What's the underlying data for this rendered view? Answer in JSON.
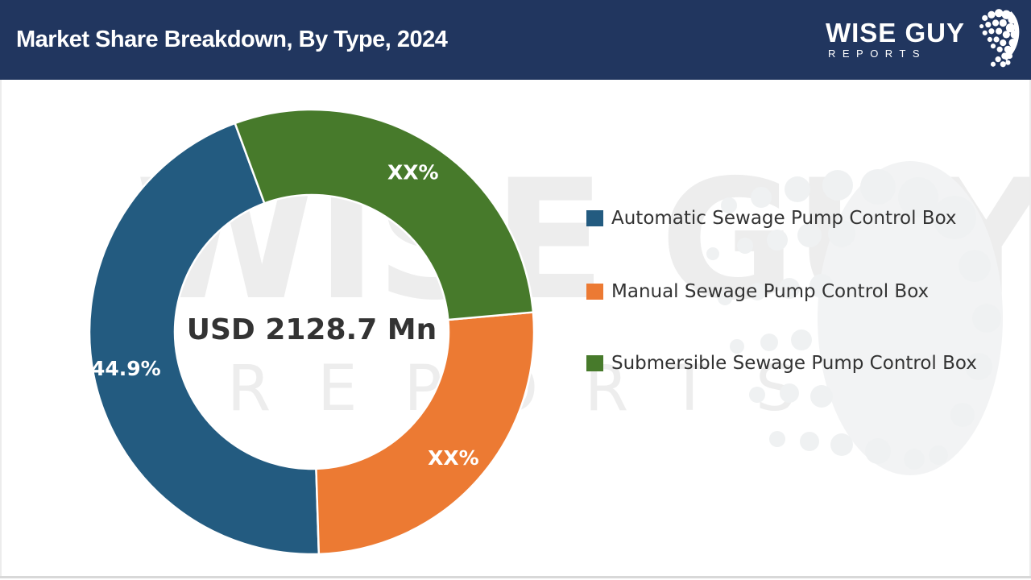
{
  "header": {
    "title": "Market Share Breakdown, By Type, 2024",
    "bg_color": "#21365f",
    "logo_line1": "WISE GUY",
    "logo_line2": "REPORTS"
  },
  "watermark": {
    "line1": "WISE GUY",
    "line2": "REPORTS"
  },
  "chart_data": {
    "type": "pie",
    "style": "donut",
    "center_label": "USD 2128.7 Mn",
    "start_angle_deg": 110.2,
    "direction": "counterclockwise",
    "legend_position": "right",
    "series": [
      {
        "name": "Automatic Sewage Pump Control Box",
        "value": 44.9,
        "display_label": "44.9%",
        "color": "#235b80"
      },
      {
        "name": "Manual Sewage Pump Control Box",
        "value": 25.9,
        "display_label": "XX%",
        "color": "#ec7a33"
      },
      {
        "name": "Submersible Sewage Pump Control Box",
        "value": 29.2,
        "display_label": "XX%",
        "color": "#477a2b"
      }
    ]
  }
}
